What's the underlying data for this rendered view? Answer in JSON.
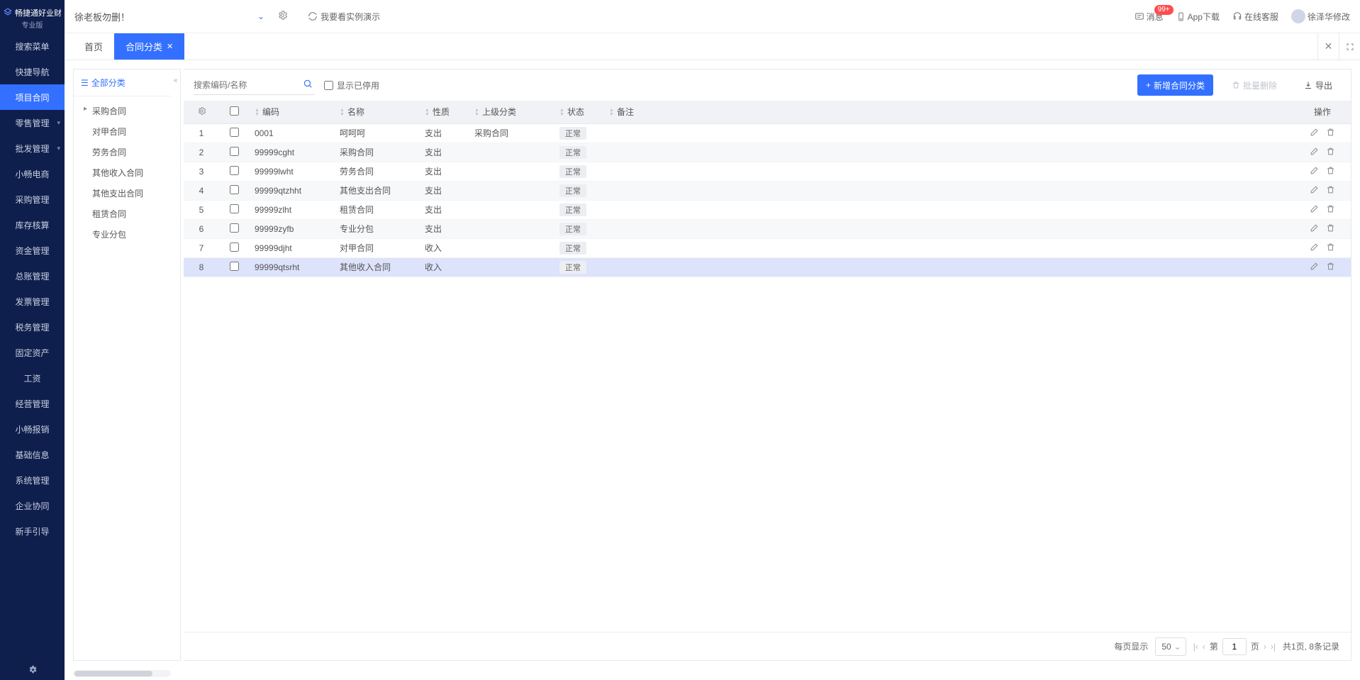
{
  "brand": {
    "name": "畅捷通好业财",
    "edition": "专业版"
  },
  "topbar": {
    "company": "徐老板勿删！",
    "demo": "我要看实例演示",
    "actions": {
      "messages": "消息",
      "badge": "99+",
      "app": "App下载",
      "service": "在线客服",
      "user": "徐泽华修改"
    }
  },
  "sidebar": {
    "items": [
      {
        "label": "搜索菜单",
        "caret": false
      },
      {
        "label": "快捷导航",
        "caret": false
      },
      {
        "label": "项目合同",
        "caret": false,
        "active": true
      },
      {
        "label": "零售管理",
        "caret": true
      },
      {
        "label": "批发管理",
        "caret": true
      },
      {
        "label": "小畅电商",
        "caret": false
      },
      {
        "label": "采购管理",
        "caret": false
      },
      {
        "label": "库存核算",
        "caret": false
      },
      {
        "label": "资金管理",
        "caret": false
      },
      {
        "label": "总账管理",
        "caret": false
      },
      {
        "label": "发票管理",
        "caret": false
      },
      {
        "label": "税务管理",
        "caret": false
      },
      {
        "label": "固定资产",
        "caret": false
      },
      {
        "label": "工资",
        "caret": false
      },
      {
        "label": "经营管理",
        "caret": false
      },
      {
        "label": "小畅报销",
        "caret": false
      },
      {
        "label": "基础信息",
        "caret": false
      },
      {
        "label": "系统管理",
        "caret": false
      },
      {
        "label": "企业协同",
        "caret": false
      },
      {
        "label": "新手引导",
        "caret": false
      }
    ]
  },
  "tabs": {
    "home": "首页",
    "active": "合同分类"
  },
  "tree": {
    "header": "全部分类",
    "items": [
      {
        "label": "采购合同",
        "children": true
      },
      {
        "label": "对甲合同"
      },
      {
        "label": "劳务合同"
      },
      {
        "label": "其他收入合同"
      },
      {
        "label": "其他支出合同"
      },
      {
        "label": "租赁合同"
      },
      {
        "label": "专业分包"
      }
    ]
  },
  "toolbar": {
    "search_placeholder": "搜索编码/名称",
    "show_disabled": "显示已停用",
    "add": "新增合同分类",
    "batch_delete": "批量删除",
    "export": "导出"
  },
  "table": {
    "columns": {
      "code": "编码",
      "name": "名称",
      "nature": "性质",
      "parent": "上级分类",
      "status": "状态",
      "remark": "备注",
      "ops": "操作"
    },
    "rows": [
      {
        "idx": "1",
        "code": "0001",
        "name": "呵呵呵",
        "nature": "支出",
        "parent": "采购合同",
        "status": "正常"
      },
      {
        "idx": "2",
        "code": "99999cght",
        "name": "采购合同",
        "nature": "支出",
        "parent": "",
        "status": "正常"
      },
      {
        "idx": "3",
        "code": "99999lwht",
        "name": "劳务合同",
        "nature": "支出",
        "parent": "",
        "status": "正常"
      },
      {
        "idx": "4",
        "code": "99999qtzhht",
        "name": "其他支出合同",
        "nature": "支出",
        "parent": "",
        "status": "正常"
      },
      {
        "idx": "5",
        "code": "99999zlht",
        "name": "租赁合同",
        "nature": "支出",
        "parent": "",
        "status": "正常"
      },
      {
        "idx": "6",
        "code": "99999zyfb",
        "name": "专业分包",
        "nature": "支出",
        "parent": "",
        "status": "正常"
      },
      {
        "idx": "7",
        "code": "99999djht",
        "name": "对甲合同",
        "nature": "收入",
        "parent": "",
        "status": "正常"
      },
      {
        "idx": "8",
        "code": "99999qtsrht",
        "name": "其他收入合同",
        "nature": "收入",
        "parent": "",
        "status": "正常",
        "selected": true
      }
    ]
  },
  "pagination": {
    "per_page_label": "每页显示",
    "per_page_value": "50",
    "page_label_prefix": "第",
    "page_value": "1",
    "page_label_suffix": "页",
    "summary": "共1页, 8条记录"
  }
}
